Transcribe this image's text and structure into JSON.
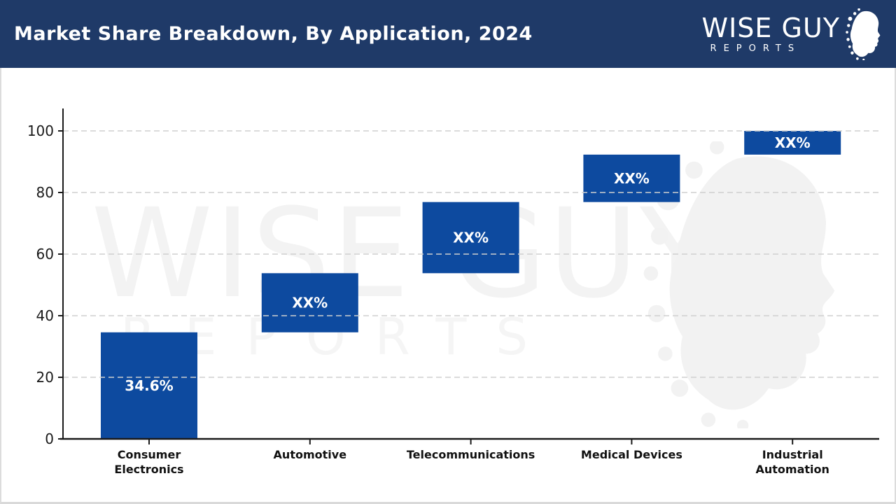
{
  "header": {
    "title": "Market Share Breakdown, By Application, 2024",
    "logo": {
      "line1": "WISE GUY",
      "line2": "REPORTS"
    }
  },
  "watermark": {
    "line1": "WISE GUY",
    "line2": "REPORTS"
  },
  "colors": {
    "header_bg": "#1f3a68",
    "bar": "#0d4a9f",
    "grid": "#cfcfcf",
    "axis": "#1a1a1a",
    "bar_label": "#ffffff",
    "watermark": "#f2f2f2"
  },
  "chart_data": {
    "type": "bar",
    "subtype": "waterfall",
    "title": "Market Share Breakdown, By Application, 2024",
    "xlabel": "",
    "ylabel": "",
    "ylim": [
      0,
      100
    ],
    "yticks": [
      0,
      20,
      40,
      60,
      80,
      100
    ],
    "grid": "dashed-horizontal-over-bars",
    "legend": "none",
    "categories": [
      "Consumer Electronics",
      "Automotive",
      "Telecommunications",
      "Medical Devices",
      "Industrial Automation"
    ],
    "categories_display": [
      [
        "Consumer",
        "Electronics"
      ],
      [
        "Automotive"
      ],
      [
        "Telecommunications"
      ],
      [
        "Medical Devices"
      ],
      [
        "Industrial",
        "Automation"
      ]
    ],
    "segments": [
      {
        "category": "Consumer Electronics",
        "start": 0,
        "end": 34.6,
        "label": "34.6%"
      },
      {
        "category": "Automotive",
        "start": 34.6,
        "end": 53.8,
        "label": "XX%"
      },
      {
        "category": "Telecommunications",
        "start": 53.8,
        "end": 76.9,
        "label": "XX%"
      },
      {
        "category": "Medical Devices",
        "start": 76.9,
        "end": 92.3,
        "label": "XX%"
      },
      {
        "category": "Industrial Automation",
        "start": 92.3,
        "end": 100,
        "label": "XX%"
      }
    ]
  }
}
